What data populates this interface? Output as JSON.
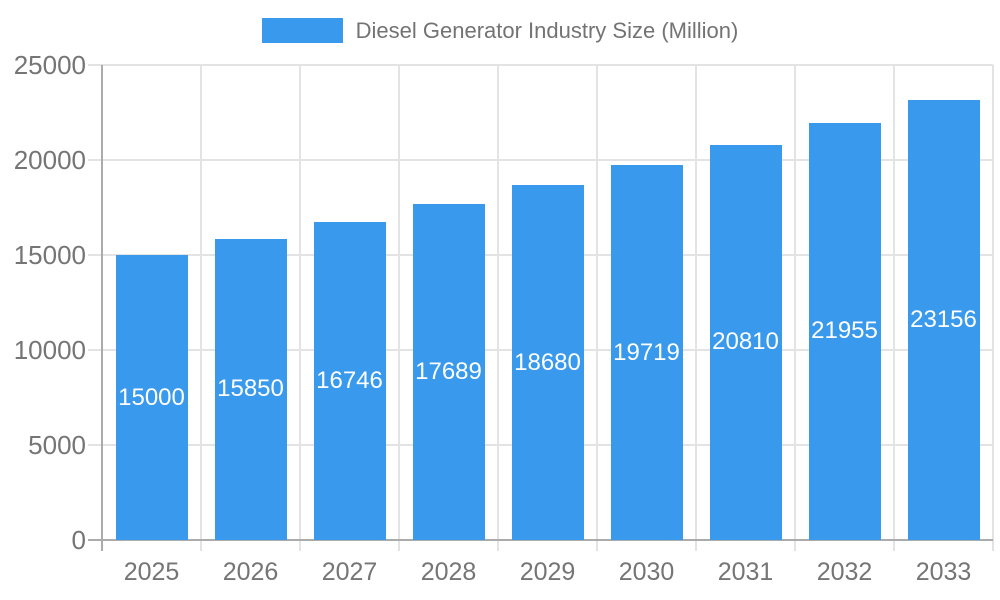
{
  "chart_data": {
    "type": "bar",
    "title": "",
    "categories": [
      "2025",
      "2026",
      "2027",
      "2028",
      "2029",
      "2030",
      "2031",
      "2032",
      "2033"
    ],
    "series": [
      {
        "name": "Diesel Generator Industry Size (Million)",
        "values": [
          15000,
          15850,
          16746,
          17689,
          18680,
          19719,
          20810,
          21955,
          23156
        ]
      }
    ],
    "value_labels": [
      15000,
      15850,
      16746,
      17689,
      18680,
      19719,
      20810,
      21955,
      23156
    ],
    "value_label_position": "centered-inside-bar",
    "xlabel": "",
    "ylabel": "",
    "ylim": [
      0,
      25000
    ],
    "yticks": [
      0,
      5000,
      10000,
      15000,
      20000,
      25000
    ],
    "grid": true,
    "legend_position": "top-center"
  },
  "colors": {
    "bar": "#3999EC",
    "grid": "#E3E3E3",
    "axis": "#ABABAB",
    "tick_text": "#757575",
    "legend_text": "#737373",
    "value_label_text": "#FFFFFF",
    "background": "#FFFFFF"
  }
}
